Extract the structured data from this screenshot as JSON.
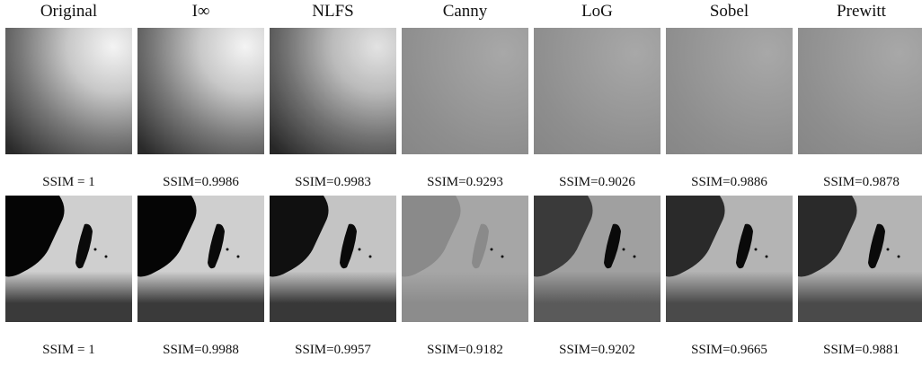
{
  "columns": [
    "Original",
    "I∞",
    "NLFS",
    "Canny",
    "LoG",
    "Sobel",
    "Prewitt"
  ],
  "rows": [
    {
      "ssim": [
        "SSIM = 1",
        "SSIM=0.9986",
        "SSIM=0.9983",
        "SSIM=0.9293",
        "SSIM=0.9026",
        "SSIM=0.9886",
        "SSIM=0.9878"
      ]
    },
    {
      "ssim": [
        "SSIM = 1",
        "SSIM=0.9988",
        "SSIM=0.9957",
        "SSIM=0.9182",
        "SSIM=0.9202",
        "SSIM=0.9665",
        "SSIM=0.9881"
      ]
    }
  ]
}
